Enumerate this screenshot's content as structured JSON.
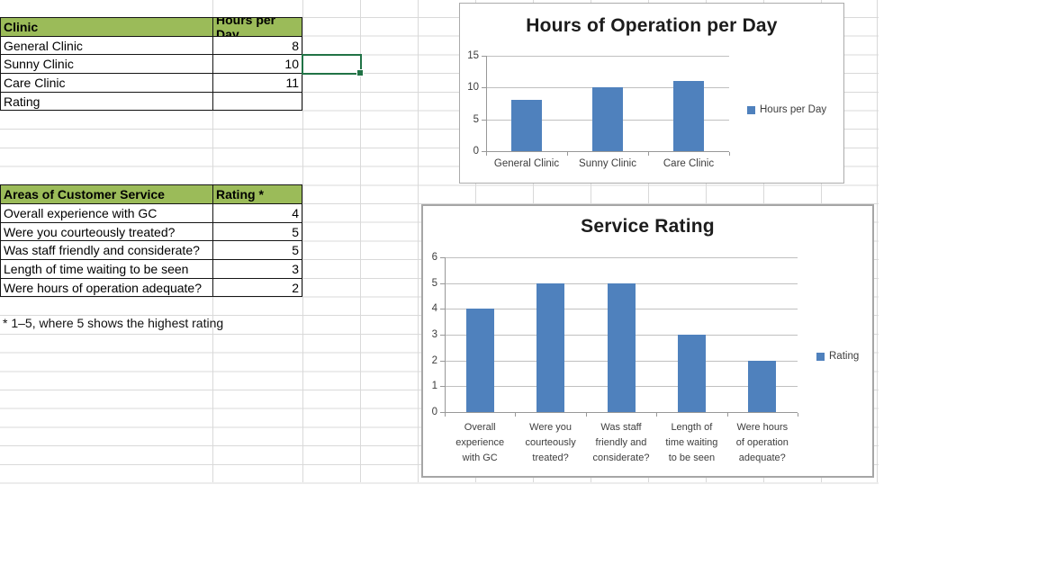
{
  "sheet": {
    "header_fill": "#9bbb59",
    "selection_color": "#217346",
    "grid_color": "#d9d9d9",
    "tables": [
      {
        "name": "clinic-hours",
        "headers": [
          "Clinic",
          "Hours per Day"
        ],
        "rows": [
          [
            "General Clinic",
            "8"
          ],
          [
            "Sunny Clinic",
            "10"
          ],
          [
            "Care Clinic",
            "11"
          ],
          [
            "Rating",
            ""
          ]
        ]
      },
      {
        "name": "service-rating",
        "headers": [
          "Areas of Customer Service",
          "Rating *"
        ],
        "rows": [
          [
            "Overall experience with GC",
            "4"
          ],
          [
            "Were you courteously treated?",
            "5"
          ],
          [
            "Was staff friendly and considerate?",
            "5"
          ],
          [
            "Length of time waiting to be seen",
            "3"
          ],
          [
            "Were hours of operation adequate?",
            "2"
          ]
        ]
      }
    ],
    "footnote": "* 1–5, where 5 shows the highest rating"
  },
  "chart_data": [
    {
      "type": "bar",
      "title": "Hours of Operation per Day",
      "categories": [
        "General Clinic",
        "Sunny Clinic",
        "Care Clinic"
      ],
      "category_labels": [
        [
          "General Clinic"
        ],
        [
          "Sunny Clinic"
        ],
        [
          "Care Clinic"
        ]
      ],
      "series": [
        {
          "name": "Hours per Day",
          "values": [
            8,
            10,
            11
          ]
        }
      ],
      "xlabel": "",
      "ylabel": "",
      "ylim": [
        0,
        15
      ],
      "yticks": [
        0,
        5,
        10,
        15
      ],
      "grid": true,
      "legend_position": "right",
      "bar_color": "#4f81bd"
    },
    {
      "type": "bar",
      "title": "Service Rating",
      "categories": [
        "Overall experience with GC",
        "Were you courteously treated?",
        "Was staff friendly and considerate?",
        "Length of time waiting to be seen",
        "Were hours of operation adequate?"
      ],
      "category_labels": [
        [
          "Overall",
          "experience",
          "with GC"
        ],
        [
          "Were you",
          "courteously",
          "treated?"
        ],
        [
          "Was staff",
          "friendly and",
          "considerate?"
        ],
        [
          "Length of",
          "time waiting",
          "to be seen"
        ],
        [
          "Were hours",
          "of operation",
          "adequate?"
        ]
      ],
      "series": [
        {
          "name": "Rating",
          "values": [
            4,
            5,
            5,
            3,
            2
          ]
        }
      ],
      "xlabel": "",
      "ylabel": "",
      "ylim": [
        0,
        6
      ],
      "yticks": [
        0,
        1,
        2,
        3,
        4,
        5,
        6
      ],
      "grid": true,
      "legend_position": "right",
      "bar_color": "#4f81bd"
    }
  ]
}
